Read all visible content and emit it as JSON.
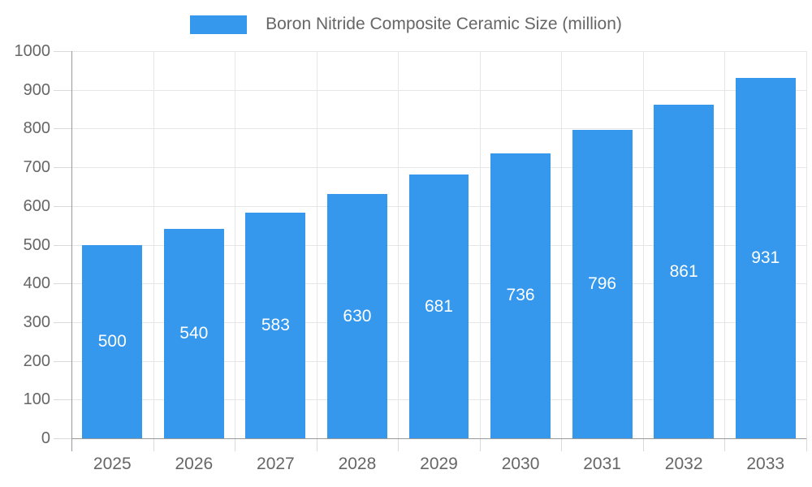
{
  "legend": {
    "label": "Boron Nitride Composite Ceramic Size (million)"
  },
  "chart_data": {
    "type": "bar",
    "title": "",
    "categories": [
      "2025",
      "2026",
      "2027",
      "2028",
      "2029",
      "2030",
      "2031",
      "2032",
      "2033"
    ],
    "series": [
      {
        "name": "Boron Nitride Composite Ceramic Size (million)",
        "values": [
          500,
          540,
          583,
          630,
          681,
          736,
          796,
          861,
          931
        ]
      }
    ],
    "ylim": [
      0,
      1000
    ],
    "yticks": [
      0,
      100,
      200,
      300,
      400,
      500,
      600,
      700,
      800,
      900,
      1000
    ],
    "grid": true,
    "legend_position": "top",
    "bar_label_position": "inside-center"
  },
  "colors": {
    "bar": "#3598ec",
    "gridline": "#e6e6e6",
    "tick": "#d9d9d9",
    "axis": "#999999",
    "label_text": "#666666",
    "bar_label_text": "#ffffff",
    "background": "#ffffff"
  }
}
